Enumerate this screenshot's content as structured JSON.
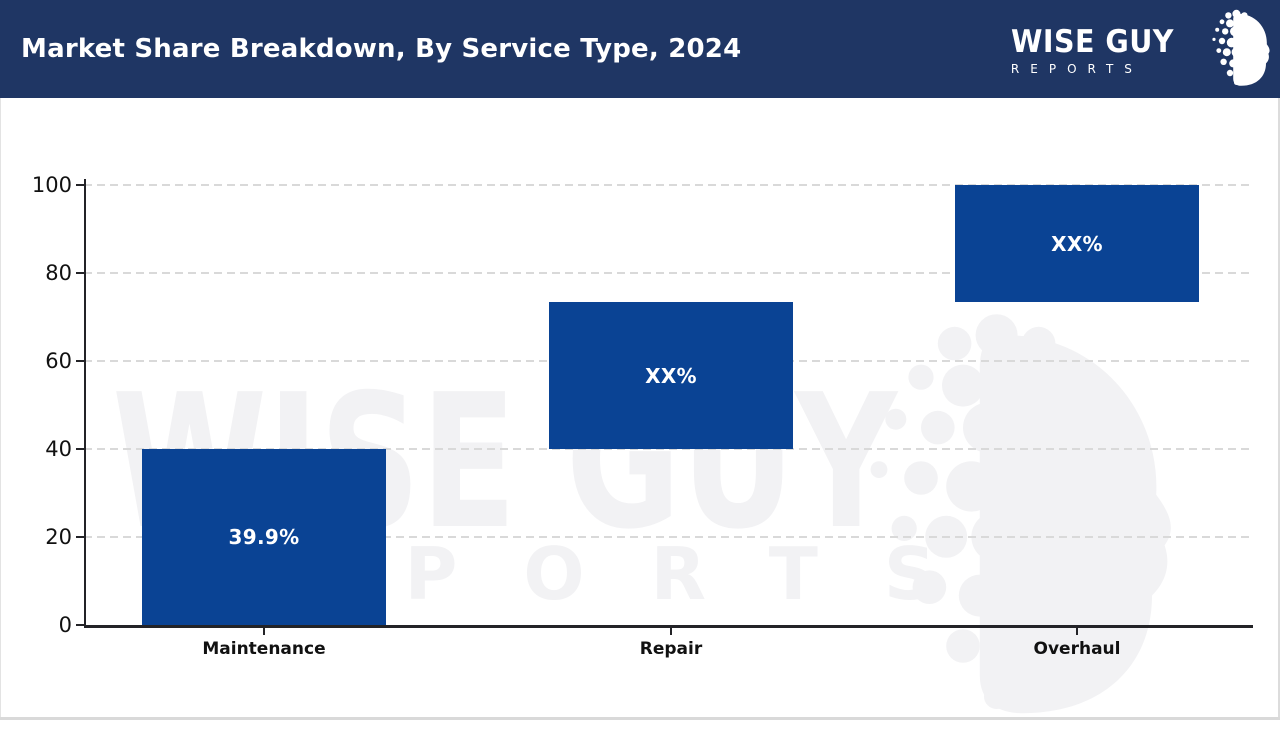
{
  "header": {
    "title": "Market Share Breakdown, By Service Type, 2024",
    "logo": {
      "line1": "WISE GUY",
      "line2": "REPORTS"
    }
  },
  "watermark": {
    "line1": "WISE GUY",
    "line2": "REPORTS"
  },
  "colors": {
    "header_bg": "#1f3664",
    "bar_fill": "#0a4394",
    "bar_label": "#ffffff",
    "gridline": "#d9d9d9",
    "axis": "#232327",
    "watermark": "#f2f2f4"
  },
  "chart_data": {
    "type": "bar",
    "variant": "waterfall",
    "title": "Market Share Breakdown, By Service Type, 2024",
    "categories": [
      "Maintenance",
      "Repair",
      "Overhaul"
    ],
    "segments": [
      {
        "category": "Maintenance",
        "start": 0,
        "end": 39.9,
        "value": 39.9,
        "label": "39.9%"
      },
      {
        "category": "Repair",
        "start": 39.9,
        "end": 73.4,
        "value": 33.5,
        "label": "XX%"
      },
      {
        "category": "Overhaul",
        "start": 73.4,
        "end": 100.0,
        "value": 26.6,
        "label": "XX%"
      }
    ],
    "yticks": [
      0,
      20,
      40,
      60,
      80,
      100
    ],
    "ylim": [
      0,
      101
    ],
    "xlabel": "",
    "ylabel": "",
    "grid": "dashed-horizontal",
    "legend": "none"
  }
}
